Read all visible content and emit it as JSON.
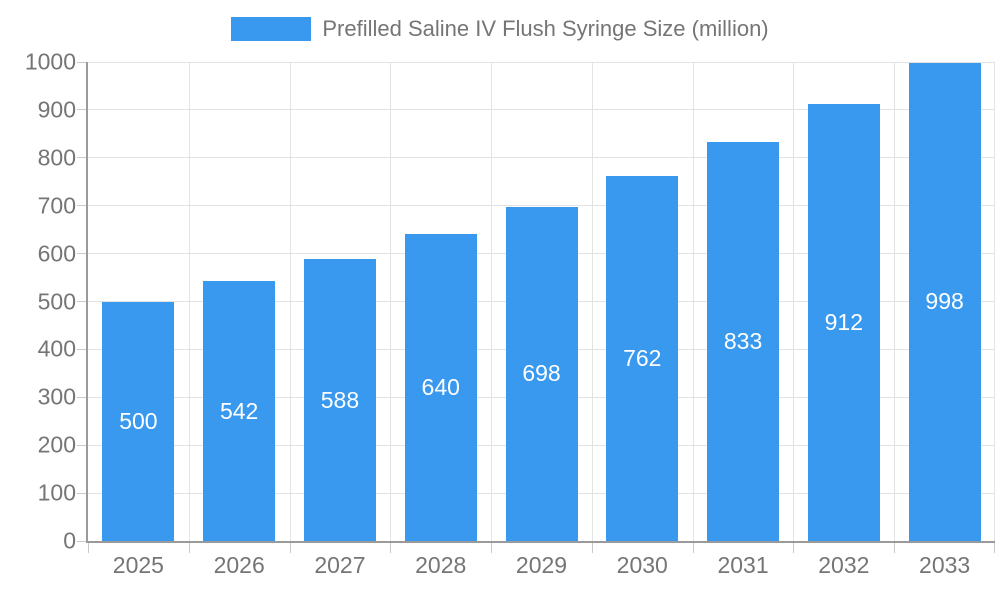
{
  "legend": {
    "label": "Prefilled Saline IV Flush Syringe Size (million)"
  },
  "colors": {
    "bar": "#3899ee",
    "bar_label": "#ffffff",
    "axis_line": "#9a9a9a",
    "grid_line": "#e3e3e3",
    "tick_mark": "#c9c9c9",
    "text": "#757575",
    "background": "#ffffff"
  },
  "chart_data": {
    "type": "bar",
    "title": "Prefilled Saline IV Flush Syringe Size (million)",
    "categories": [
      "2025",
      "2026",
      "2027",
      "2028",
      "2029",
      "2030",
      "2031",
      "2032",
      "2033"
    ],
    "values": [
      500,
      542,
      588,
      640,
      698,
      762,
      833,
      912,
      998
    ],
    "series": [
      {
        "name": "Prefilled Saline IV Flush Syringe Size (million)",
        "values": [
          500,
          542,
          588,
          640,
          698,
          762,
          833,
          912,
          998
        ]
      }
    ],
    "xlabel": "",
    "ylabel": "",
    "ylim": [
      0,
      1000
    ],
    "yticks": [
      0,
      100,
      200,
      300,
      400,
      500,
      600,
      700,
      800,
      900,
      1000
    ],
    "grid": true,
    "grid_vertical": true,
    "legend_position": "top",
    "value_labels": "inside-center"
  }
}
